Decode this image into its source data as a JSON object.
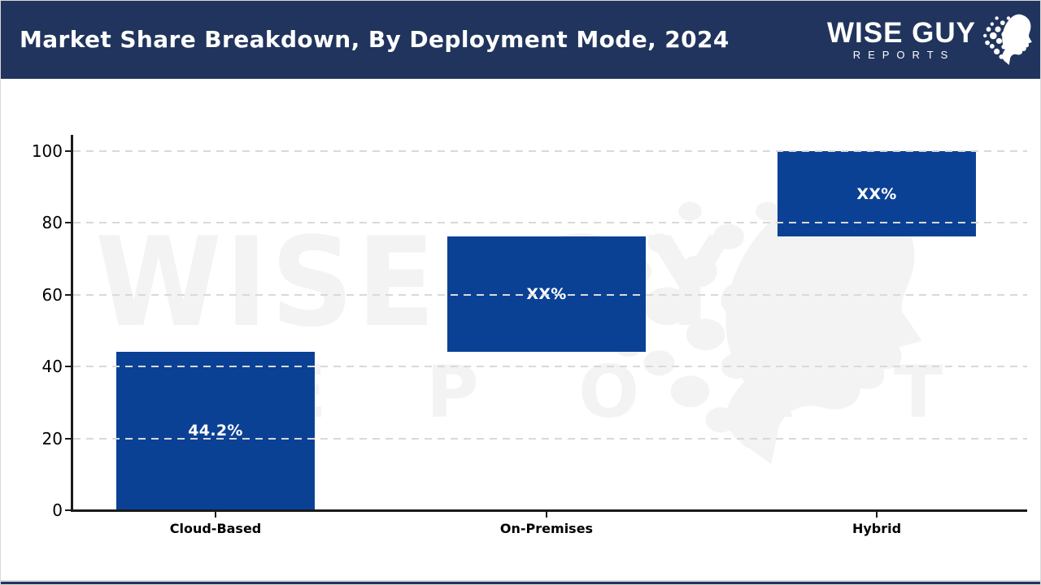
{
  "header": {
    "title": "Market Share Breakdown, By Deployment Mode, 2024",
    "logo": {
      "name_top": "WISE GUY",
      "name_bottom": "REPORTS",
      "icon": "dotted-head-profile-icon"
    }
  },
  "colors": {
    "header_bg": "#21345d",
    "footer_bar": "#21345d",
    "bar": "#0b4195",
    "bar_label": "#ffffff",
    "grid": "#d9d9d9",
    "axis": "#1a1a1a",
    "watermark": "#f3f3f3"
  },
  "watermark": {
    "big_text_parts": [
      "WISE",
      "G",
      "Y"
    ],
    "small_text": "R E P O R T S"
  },
  "chart_data": {
    "type": "bar",
    "subtype": "floating-column-waterfall",
    "title": "Market Share Breakdown, By Deployment Mode, 2024",
    "categories": [
      "Cloud-Based",
      "On-Premises",
      "Hybrid"
    ],
    "bars": [
      {
        "category": "Cloud-Based",
        "base": 0,
        "top": 44.2,
        "label": "44.2%"
      },
      {
        "category": "On-Premises",
        "base": 44.2,
        "top": 76.2,
        "label": "XX%"
      },
      {
        "category": "Hybrid",
        "base": 76.2,
        "top": 100,
        "label": "XX%"
      }
    ],
    "y_ticks": [
      0,
      20,
      40,
      60,
      80,
      100
    ],
    "ylim": [
      0,
      104
    ],
    "xlabel": "",
    "ylabel": "",
    "grid": "horizontal-dashed",
    "legend": null
  }
}
